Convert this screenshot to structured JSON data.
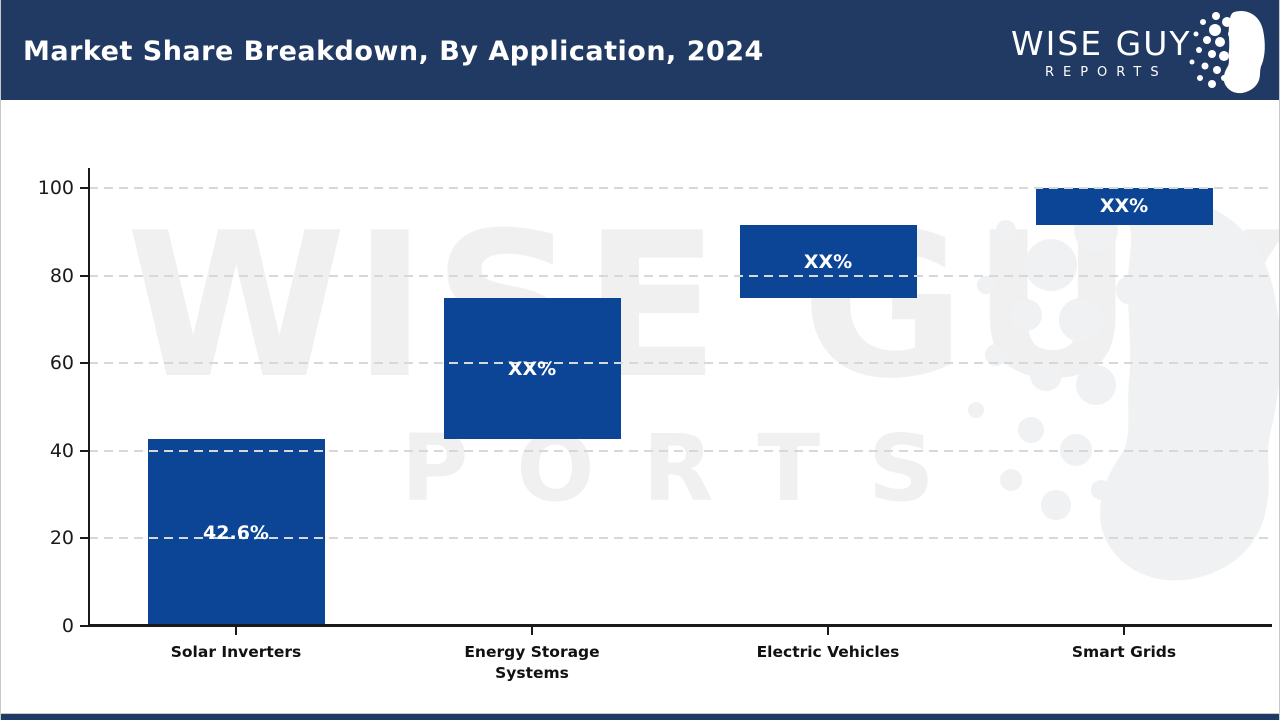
{
  "header": {
    "title": "Market Share Breakdown, By Application, 2024",
    "logo": {
      "line1": "WISE GUY",
      "line2": "REPORTS"
    }
  },
  "watermark": {
    "line1": "WISE GUY",
    "line2": "PORTS"
  },
  "colors": {
    "header_navy": "#213a63",
    "bar_blue": "#0c4496",
    "axis": "#1a1a1a",
    "grid": "#d8d8d8",
    "watermark_gray": "#f0f0f1",
    "bar_label_white": "#ffffff",
    "frame_border": "#c9c9c9"
  },
  "chart_data": {
    "type": "bar",
    "subtype": "waterfall",
    "title": "Market Share Breakdown, By Application, 2024",
    "categories": [
      "Solar Inverters",
      "Energy Storage Systems",
      "Electric Vehicles",
      "Smart Grids"
    ],
    "series": [
      {
        "name": "Market Share",
        "segments": [
          {
            "category": "Solar Inverters",
            "start": 0,
            "end": 42.6,
            "label": "42.6%"
          },
          {
            "category": "Energy Storage Systems",
            "start": 42.6,
            "end": 74.8,
            "label": "XX%"
          },
          {
            "category": "Electric Vehicles",
            "start": 74.8,
            "end": 91.6,
            "label": "XX%"
          },
          {
            "category": "Smart Grids",
            "start": 91.6,
            "end": 100,
            "label": "XX%"
          }
        ]
      }
    ],
    "xlabel": "",
    "ylabel": "",
    "ylim": [
      0,
      100
    ],
    "yticks": [
      0,
      20,
      40,
      60,
      80,
      100
    ],
    "grid": "dashed-horizontal-on-top",
    "legend": "none"
  }
}
